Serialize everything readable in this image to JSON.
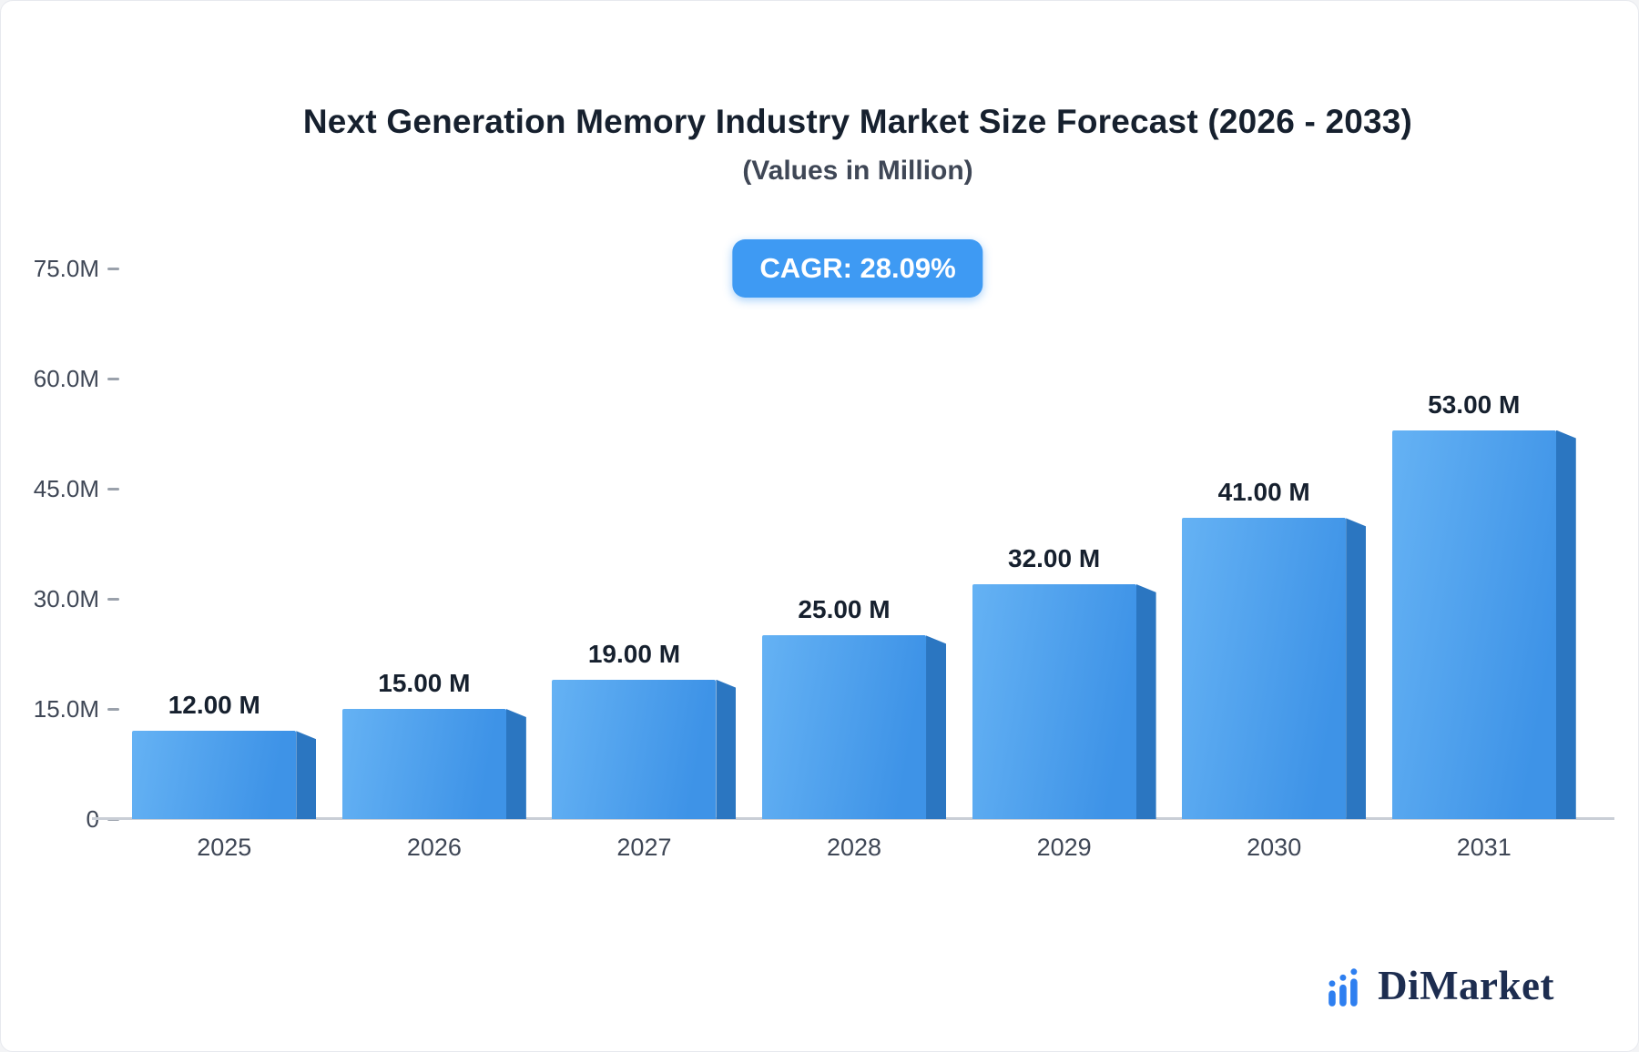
{
  "header": {
    "title": "Next Generation Memory Industry Market Size Forecast (2026 - 2033)",
    "subtitle": "(Values in Million)",
    "cagr_badge": "CAGR: 28.09%"
  },
  "logo": {
    "text": "DiMarket"
  },
  "chart_data": {
    "type": "bar",
    "title": "Next Generation Memory Industry Market Size Forecast (2026 - 2033)",
    "subtitle": "(Values in Million)",
    "categories": [
      "2025",
      "2026",
      "2027",
      "2028",
      "2029",
      "2030",
      "2031"
    ],
    "values": [
      12,
      15,
      19,
      25,
      32,
      41,
      53
    ],
    "value_labels": [
      "12.00 M",
      "15.00 M",
      "19.00 M",
      "25.00 M",
      "32.00 M",
      "41.00 M",
      "53.00 M"
    ],
    "unit": "Million",
    "y_ticks": [
      "75.0M",
      "60.0M",
      "45.0M",
      "30.0M",
      "15.0M",
      "0"
    ],
    "ylim": [
      0,
      75
    ],
    "grid": false,
    "legend": "none",
    "cagr": "28.09%",
    "colors": {
      "bar_light": "#65b2f4",
      "bar_face": "#3e93e7",
      "bar_side": "#2b76c1",
      "badge": "#3e9af3",
      "axis": "#c9ced6",
      "text_dark": "#16202e",
      "text_gray": "#3f4756",
      "logo_navy": "#1d2d50",
      "logo_blue": "#2e7ff0"
    }
  }
}
